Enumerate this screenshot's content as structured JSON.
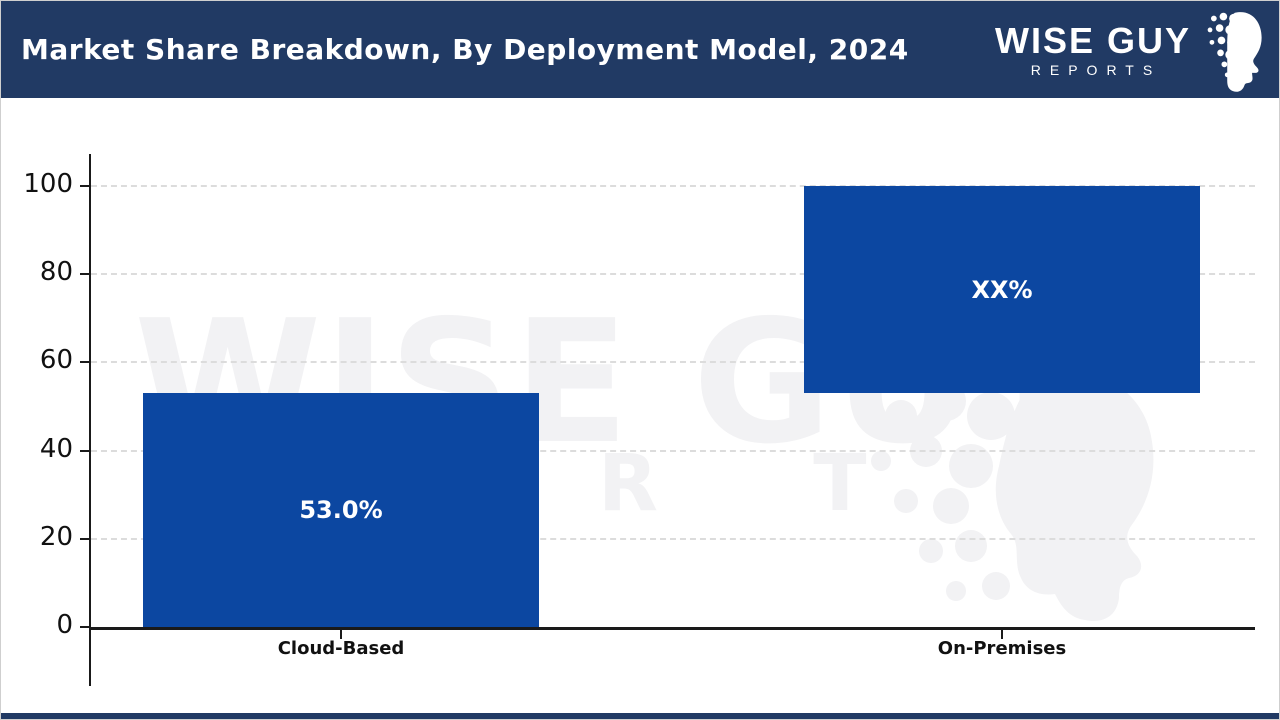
{
  "header": {
    "title": "Market Share Breakdown, By Deployment Model, 2024",
    "logo": {
      "line1": "WISE GUY",
      "line2": "REPORTS"
    }
  },
  "watermark": {
    "line1": "WISE GUY",
    "line2": "R T S"
  },
  "chart_data": {
    "type": "bar",
    "title": "Market Share Breakdown, By Deployment Model, 2024",
    "categories": [
      "Cloud-Based",
      "On-Premises"
    ],
    "bars": [
      {
        "category": "Cloud-Based",
        "start": 0,
        "end": 53,
        "label": "53.0%"
      },
      {
        "category": "On-Premises",
        "start": 53,
        "end": 100,
        "label": "XX%"
      }
    ],
    "yticks": [
      0,
      20,
      40,
      60,
      80,
      100
    ],
    "ylim": [
      0,
      107
    ],
    "xlabel": "",
    "ylabel": "",
    "grid": true,
    "legend": false,
    "bar_color": "#0C47A1"
  },
  "colors": {
    "header_bg": "#213A64",
    "bar": "#0C47A1",
    "gridline": "#dcdcdc",
    "watermark": "#f2f2f4",
    "axis": "#1a1a1a"
  }
}
